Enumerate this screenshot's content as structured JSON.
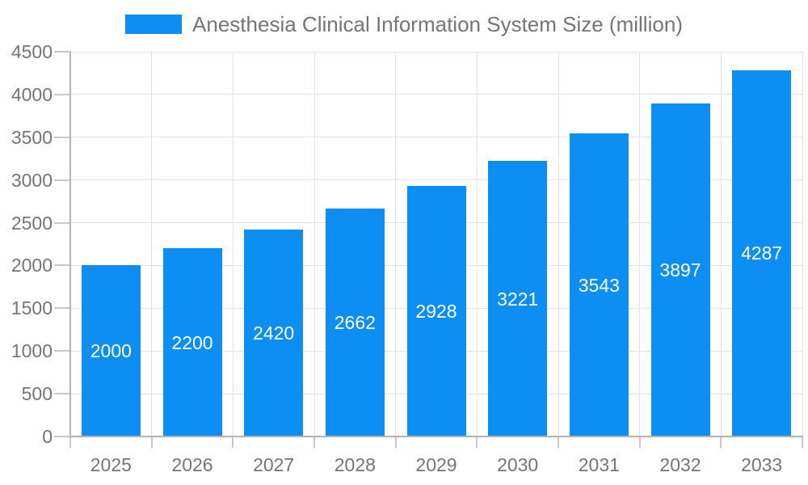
{
  "chart_data": {
    "type": "bar",
    "title": "Anesthesia Clinical Information System Size (million)",
    "series_name": "Anesthesia Clinical Information System Size (million)",
    "categories": [
      "2025",
      "2026",
      "2027",
      "2028",
      "2029",
      "2030",
      "2031",
      "2032",
      "2033"
    ],
    "values": [
      2000,
      2200,
      2420,
      2662,
      2928,
      3221,
      3543,
      3897,
      4287
    ],
    "xlabel": "",
    "ylabel": "",
    "ylim": [
      0,
      4500
    ],
    "ytick_step": 500,
    "yticks": [
      0,
      500,
      1000,
      1500,
      2000,
      2500,
      3000,
      3500,
      4000,
      4500
    ],
    "grid": true,
    "legend_position": "top",
    "colors": {
      "bar": "#0d8ef2",
      "value_label": "#ffffff",
      "axis_text": "#757575",
      "gridline": "#e3e3e3",
      "axis_line": "#b3b3b3",
      "tick_mark": "#c9c9c9"
    }
  }
}
